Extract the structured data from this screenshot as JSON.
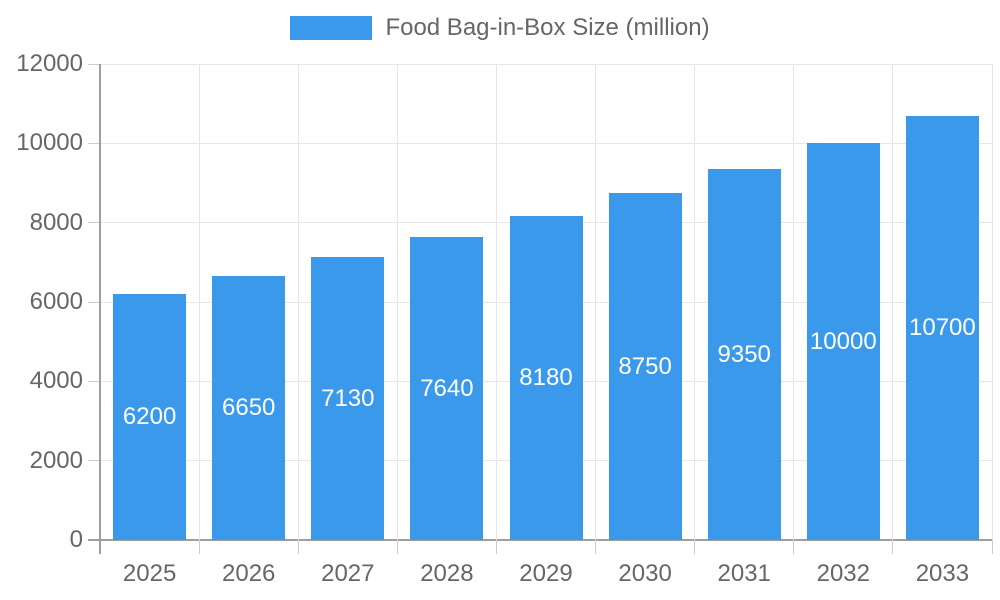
{
  "legend": {
    "label": "Food Bag-in-Box Size (million)"
  },
  "chart_data": {
    "type": "bar",
    "title": "Food Bag-in-Box Size (million)",
    "categories": [
      "2025",
      "2026",
      "2027",
      "2028",
      "2029",
      "2030",
      "2031",
      "2032",
      "2033"
    ],
    "series": [
      {
        "name": "Food Bag-in-Box Size (million)",
        "values": [
          6200,
          6650,
          7130,
          7640,
          8180,
          8750,
          9350,
          10000,
          10700
        ]
      }
    ],
    "xlabel": "",
    "ylabel": "",
    "ylim": [
      0,
      12000
    ],
    "yticks": [
      0,
      2000,
      4000,
      6000,
      8000,
      10000,
      12000
    ],
    "grid": true,
    "legend_position": "top",
    "value_labels_position": "inside-center"
  },
  "colors": {
    "bar": "#3B99EC",
    "grid": "#E6E6E6",
    "axis": "#9E9E9E",
    "tick": "#CCCCCC",
    "text": "#666666",
    "value_label": "#FFFFFF"
  }
}
